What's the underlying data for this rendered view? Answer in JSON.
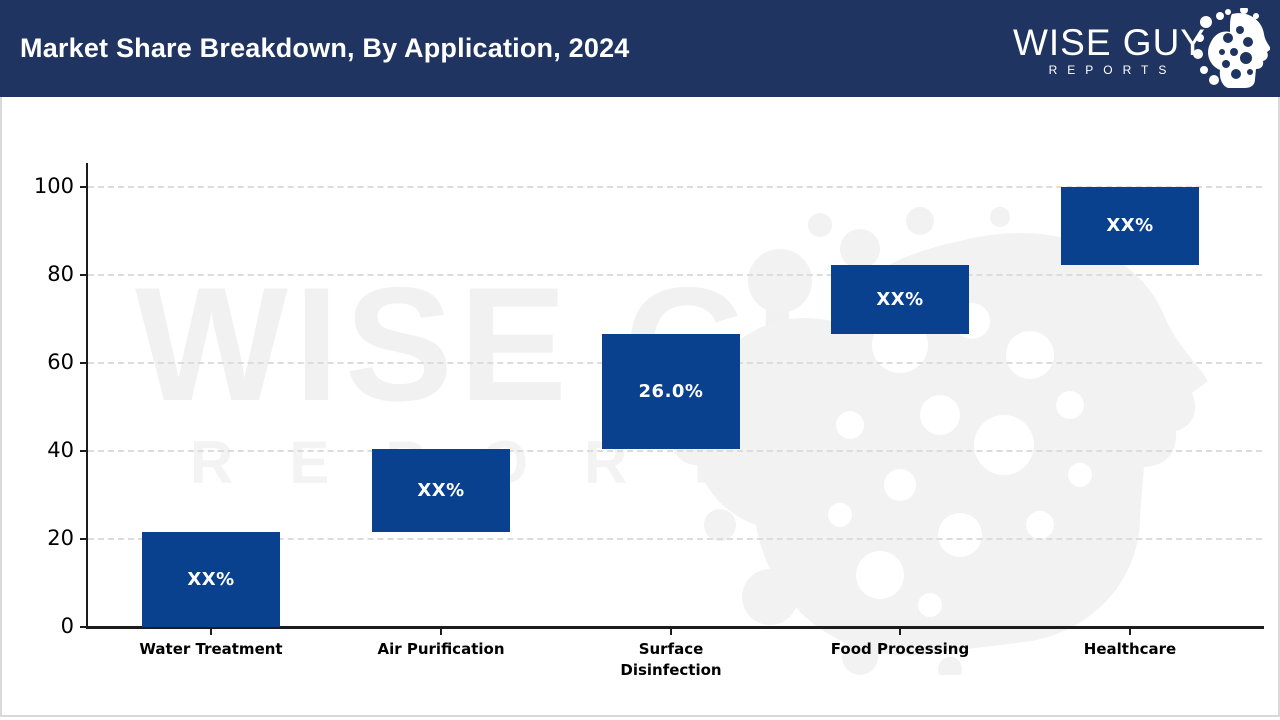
{
  "header": {
    "title": "Market Share Breakdown, By Application, 2024",
    "logo": {
      "line1": "WISE GUY",
      "line2": "REPORTS"
    }
  },
  "watermark": {
    "line1": "WISE GUY",
    "line2": "REPORTS"
  },
  "colors": {
    "header_bg": "#203461",
    "bar": "#09418f",
    "grid": "#dcdcdc",
    "axis": "#1c1c1c",
    "watermark": "#f1f1f1"
  },
  "chart_data": {
    "type": "bar",
    "subtype": "waterfall",
    "title": "Market Share Breakdown, By Application, 2024",
    "xlabel": "",
    "ylabel": "",
    "categories": [
      "Water Treatment",
      "Air Purification",
      "Surface Disinfection",
      "Food Processing",
      "Healthcare"
    ],
    "segments": [
      {
        "category": "Water Treatment",
        "start": 0,
        "end": 21.5,
        "value": 21.5,
        "label": "XX%"
      },
      {
        "category": "Air Purification",
        "start": 21.5,
        "end": 40.5,
        "value": 19.0,
        "label": "XX%"
      },
      {
        "category": "Surface Disinfection",
        "start": 40.5,
        "end": 66.5,
        "value": 26.0,
        "label": "26.0%"
      },
      {
        "category": "Food Processing",
        "start": 66.5,
        "end": 82.3,
        "value": 15.8,
        "label": "XX%"
      },
      {
        "category": "Healthcare",
        "start": 82.3,
        "end": 100.0,
        "value": 17.7,
        "label": "XX%"
      }
    ],
    "y_ticks": [
      0,
      20,
      40,
      60,
      80,
      100
    ],
    "ylim": [
      0,
      105
    ],
    "grid": "horizontal-dashed",
    "legend": "none"
  }
}
